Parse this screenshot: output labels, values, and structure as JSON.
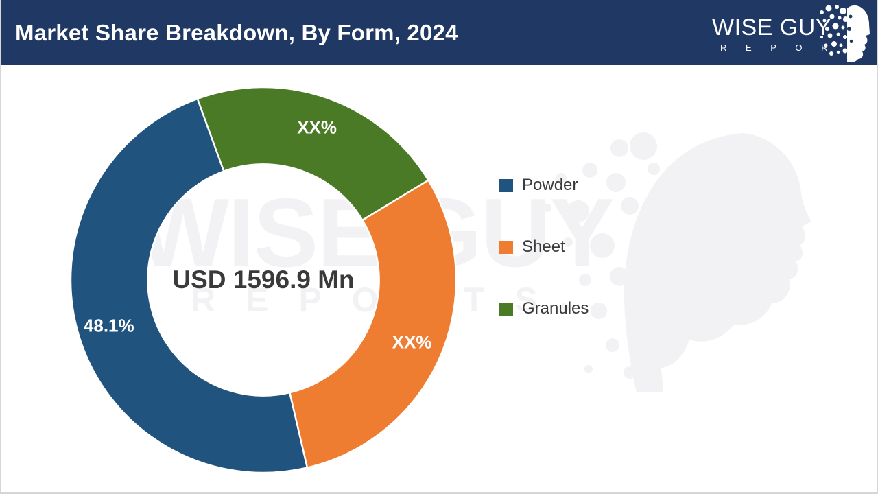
{
  "header": {
    "title": "Market Share Breakdown, By Form, 2024",
    "logo": {
      "brand_top": "WISE GUY",
      "brand_bottom": "R E P O R T S"
    }
  },
  "colors": {
    "header_bg": "#1F3864",
    "powder": "#20537E",
    "sheet": "#EE7D31",
    "granules": "#4A7A25",
    "slice_label_text": "#FFFFFF",
    "center_text": "#3A3A3A",
    "watermark": "#F2F2F4"
  },
  "watermark": {
    "line1": "WISE GUY",
    "line2": "REPORTS"
  },
  "chart_data": {
    "type": "pie",
    "subtype": "donut",
    "title": "Market Share Breakdown, By Form, 2024",
    "center_label": "USD 1596.9 Mn",
    "start_angle_deg": 110,
    "direction": "counterclockwise",
    "inner_radius_ratio": 0.6,
    "legend_position": "right",
    "slices": [
      {
        "name": "Powder",
        "label": "48.1%",
        "share_pct": 48.1,
        "color": "#20537E"
      },
      {
        "name": "Sheet",
        "label": "XX%",
        "share_pct": 30.0,
        "color": "#EE7D31"
      },
      {
        "name": "Granules",
        "label": "XX%",
        "share_pct": 21.9,
        "color": "#4A7A25"
      }
    ]
  }
}
